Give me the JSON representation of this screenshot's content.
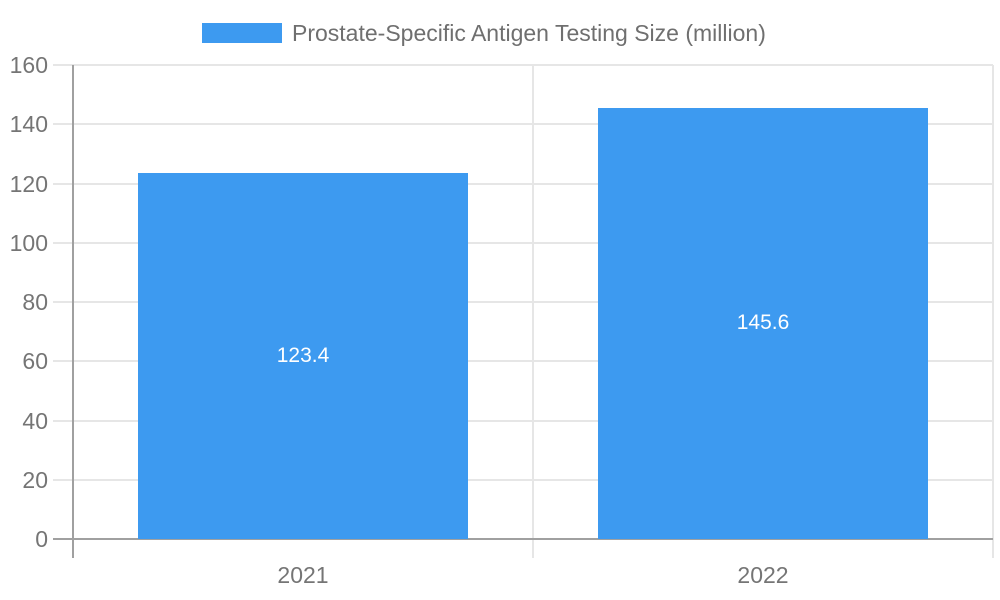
{
  "chart_data": {
    "type": "bar",
    "title": "Prostate-Specific Antigen Testing Size (million)",
    "legend": {
      "label": "Prostate-Specific Antigen Testing Size (million)",
      "position": "top",
      "swatch_color": "#3d9af0"
    },
    "categories": [
      "2021",
      "2022"
    ],
    "series": [
      {
        "name": "Prostate-Specific Antigen Testing Size (million)",
        "values": [
          123.4,
          145.6
        ],
        "value_labels": [
          "123.4",
          "145.6"
        ],
        "color": "#3d9af0"
      }
    ],
    "xlabel": "",
    "ylabel": "",
    "ylim": [
      0,
      160
    ],
    "ytick_step": 20,
    "ytick_labels": [
      "0",
      "20",
      "40",
      "60",
      "80",
      "100",
      "120",
      "140",
      "160"
    ],
    "grid": true,
    "value_label_position": "inside-center",
    "value_label_color": "#ffffff",
    "colors": {
      "bar": "#3d9af0",
      "axis_line": "#a0a0a0",
      "gridline": "#e6e6e6",
      "tick_text": "#757575",
      "legend_text": "#6f6f6f",
      "background": "#ffffff"
    }
  }
}
